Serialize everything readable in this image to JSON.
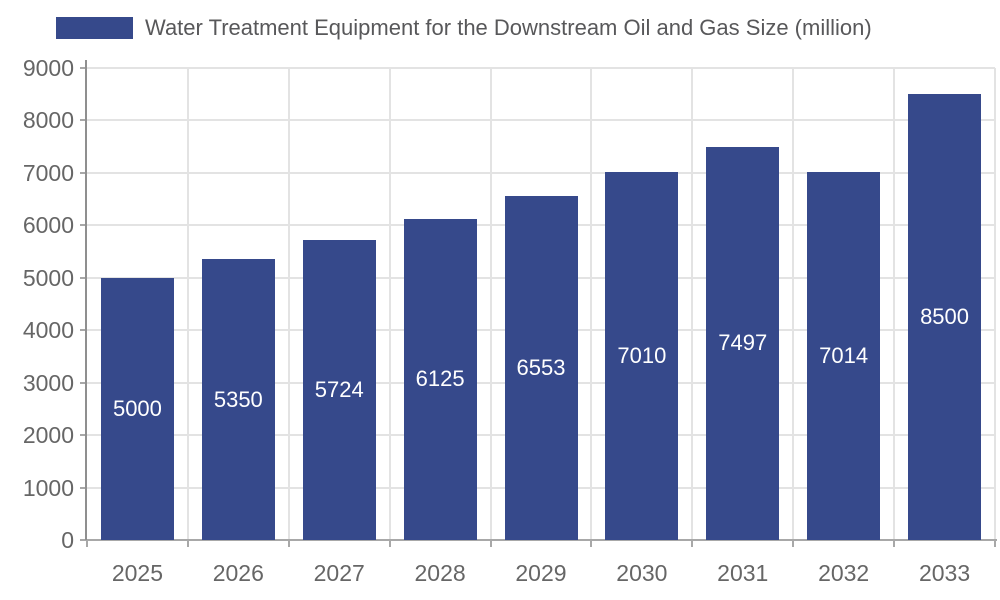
{
  "chart_data": {
    "type": "bar",
    "title": "Water Treatment Equipment for the Downstream Oil and Gas Size (million)",
    "categories": [
      "2025",
      "2026",
      "2027",
      "2028",
      "2029",
      "2030",
      "2031",
      "2032",
      "2033"
    ],
    "series": [
      {
        "name": "Water Treatment Equipment for the Downstream Oil and Gas Size (million)",
        "values": [
          5000,
          5350,
          5724,
          6125,
          6553,
          7010,
          7497,
          7014,
          8500
        ]
      }
    ],
    "xlabel": "",
    "ylabel": "",
    "ylim": [
      0,
      9000
    ],
    "ytick_step": 1000,
    "yticks": [
      0,
      1000,
      2000,
      3000,
      4000,
      5000,
      6000,
      7000,
      8000,
      9000
    ],
    "grid": true,
    "legend_position": "top-left",
    "value_label_position": "inside-center",
    "colors": {
      "bar": "#36498B",
      "value_label": "#FFFFFF",
      "grid": "#E3E3E3",
      "y_axis_line": "#8F8F8F",
      "x_axis_line": "#A8A8A8",
      "tick_label": "#666666",
      "title": "#58585A",
      "background": "#FFFFFF"
    }
  }
}
